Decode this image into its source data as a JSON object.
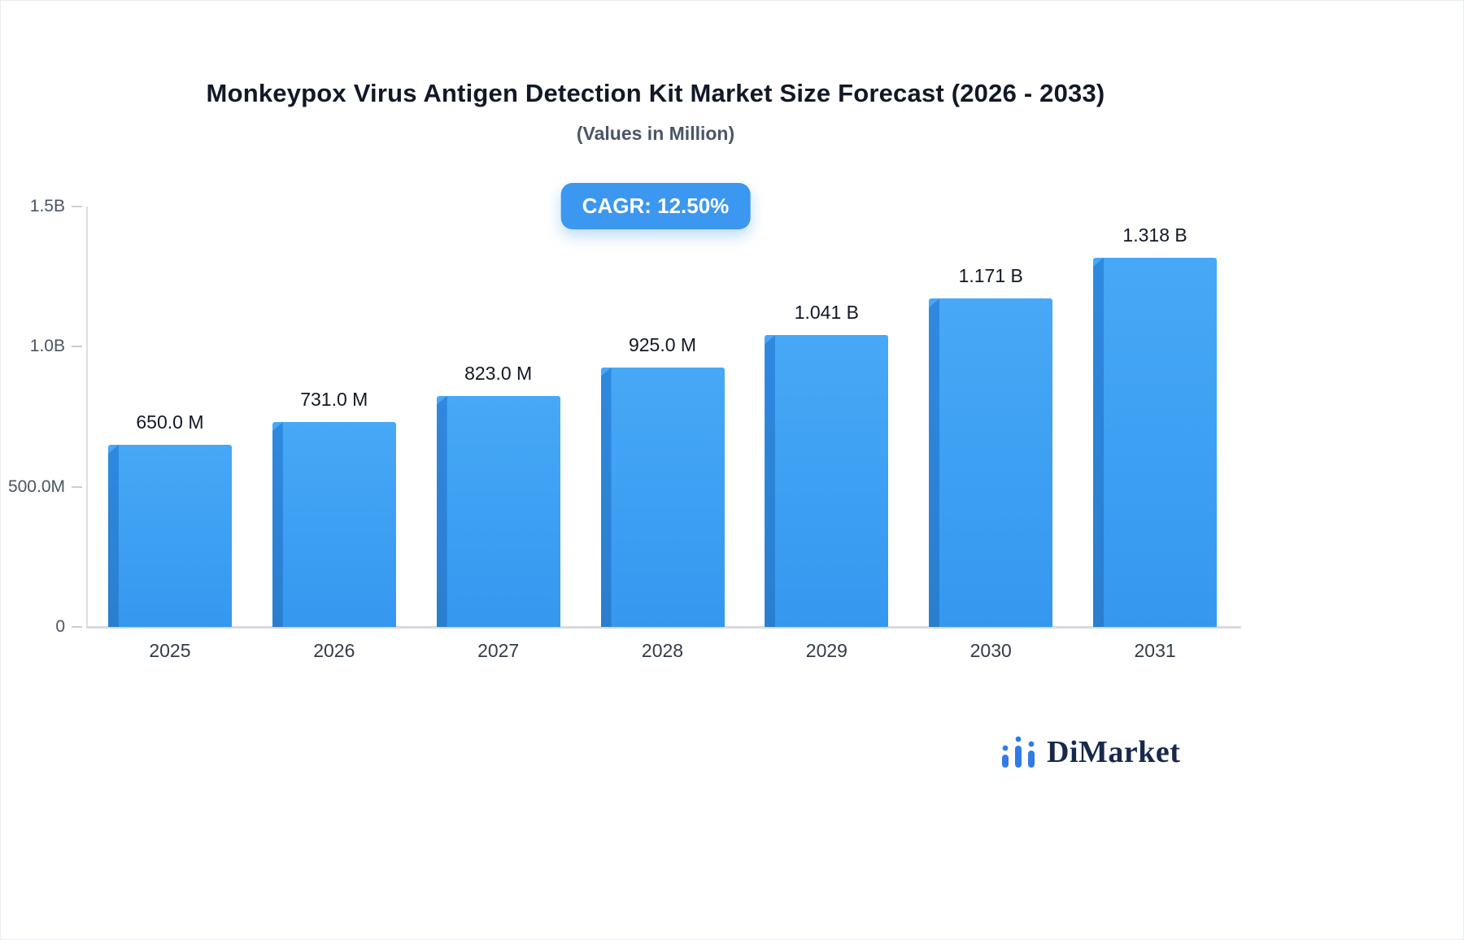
{
  "header": {
    "title": "Monkeypox Virus Antigen Detection Kit Market Size Forecast (2026 - 2033)",
    "subtitle": "(Values in Million)",
    "cagr_badge": "CAGR: 12.50%"
  },
  "chart_data": {
    "type": "bar",
    "title": "Monkeypox Virus Antigen Detection Kit Market Size Forecast (2026 - 2033)",
    "subtitle": "(Values in Million)",
    "cagr_percent": 12.5,
    "categories": [
      "2025",
      "2026",
      "2027",
      "2028",
      "2029",
      "2030",
      "2031"
    ],
    "values_millions": [
      650,
      731,
      823,
      925,
      1041,
      1171,
      1318
    ],
    "value_labels": [
      "650.0 M",
      "731.0 M",
      "823.0 M",
      "925.0 M",
      "1.041 B",
      "1.171 B",
      "1.318 B"
    ],
    "xlabel": "",
    "ylabel": "",
    "ylim": [
      0,
      1500
    ],
    "y_ticks": [
      {
        "value": 1500,
        "label": "1.5B"
      },
      {
        "value": 1000,
        "label": "1.0B"
      },
      {
        "value": 500,
        "label": "500.0M"
      },
      {
        "value": 0,
        "label": "0"
      }
    ],
    "legend": "none",
    "grid": "off",
    "bar_color": "#3a9cf1",
    "bar_edge_color": "#2a7ecf",
    "badge_color": "#3b97f0"
  },
  "branding": {
    "logo_text": "DiMarket",
    "logo_text_color": "#17294e",
    "logo_icon_color": "#2f7ce6"
  }
}
